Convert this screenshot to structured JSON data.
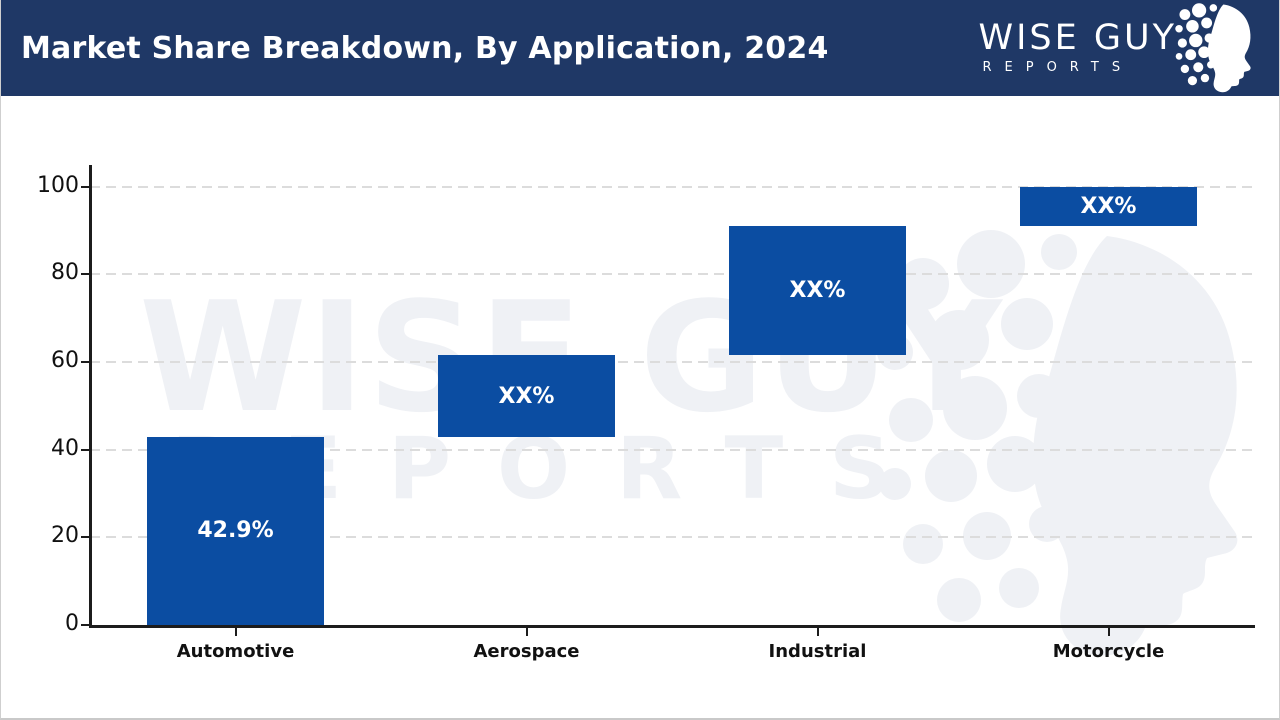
{
  "header": {
    "title": "Market Share Breakdown, By Application, 2024",
    "logo": {
      "line1": "WISE GUY",
      "line2": "REPORTS"
    }
  },
  "watermark": {
    "line1": "WISE GUY",
    "line2": "REPORTS"
  },
  "colors": {
    "header_bg": "#1f3866",
    "bar": "#0b4da2",
    "axis": "#1c1c1c",
    "grid": "#dcdcdc",
    "watermark": "#eff1f5",
    "bar_label": "#ffffff"
  },
  "chart_data": {
    "type": "bar",
    "subtype": "waterfall",
    "title": "Market Share Breakdown, By Application, 2024",
    "categories": [
      "Automotive",
      "Aerospace",
      "Industrial",
      "Motorcycle"
    ],
    "segments": [
      {
        "category": "Automotive",
        "start": 0,
        "end": 42.9,
        "label": "42.9%"
      },
      {
        "category": "Aerospace",
        "start": 42.9,
        "end": 61.5,
        "label": "XX%"
      },
      {
        "category": "Industrial",
        "start": 61.5,
        "end": 91.0,
        "label": "XX%"
      },
      {
        "category": "Motorcycle",
        "start": 91.0,
        "end": 100.0,
        "label": "XX%"
      }
    ],
    "ylabel": "",
    "xlabel": "",
    "yticks": [
      0,
      20,
      40,
      60,
      80,
      100
    ],
    "ylim": [
      0,
      105
    ],
    "grid": "horizontal-dashed",
    "legend": "none",
    "bar_color": "#0b4da2"
  }
}
